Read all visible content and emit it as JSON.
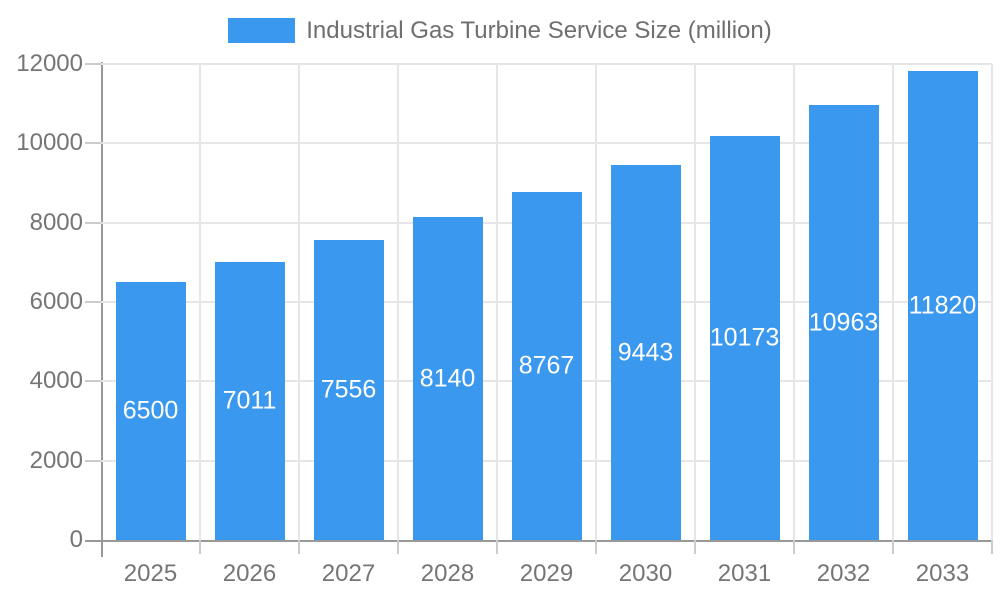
{
  "chart_data": {
    "type": "bar",
    "title": "Industrial Gas Turbine Service Size (million)",
    "categories": [
      "2025",
      "2026",
      "2027",
      "2028",
      "2029",
      "2030",
      "2031",
      "2032",
      "2033"
    ],
    "series": [
      {
        "name": "Industrial Gas Turbine Service Size (million)",
        "values": [
          6500,
          7011,
          7556,
          8140,
          8767,
          9443,
          10173,
          10963,
          11820
        ]
      }
    ],
    "xlabel": "",
    "ylabel": "",
    "ylim": [
      0,
      12000
    ],
    "yticks": [
      0,
      2000,
      4000,
      6000,
      8000,
      10000,
      12000
    ],
    "grid": true,
    "legend_position": "top",
    "value_labels": "inside-center"
  },
  "colors": {
    "bar_fill": "#3b98ef",
    "value_label": "#ffffff",
    "axis_line": "#999999",
    "gridline": "#e6e6e6",
    "tick": "#cccccc",
    "axis_text": "#757575",
    "legend_text": "#6e6e6e",
    "background": "#ffffff"
  }
}
